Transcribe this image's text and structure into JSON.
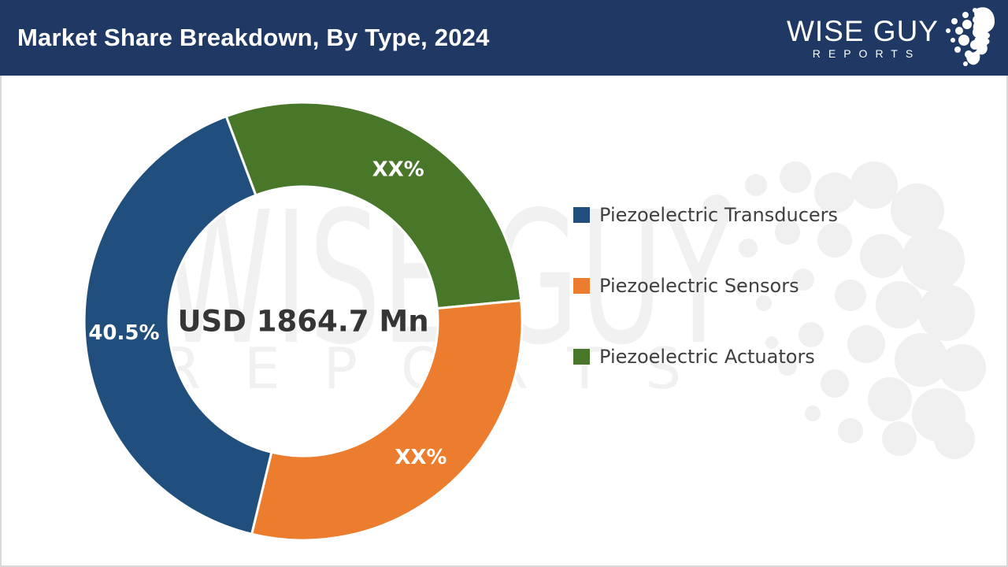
{
  "header": {
    "title": "Market Share Breakdown, By Type, 2024",
    "bg_color": "#1F3864",
    "logo": {
      "line1": "WISE GUY",
      "line2": "REPORTS"
    }
  },
  "watermark": {
    "line1": "WISE GUY",
    "line2": "REPORTS"
  },
  "chart_data": {
    "type": "pie",
    "donut": true,
    "title": "Market Share Breakdown, By Type, 2024",
    "center_label": "USD 1864.7 Mn",
    "start_angle_deg": -20.6,
    "legend_position": "right",
    "segments": [
      {
        "name": "Piezoelectric Actuators",
        "value_pct": 29.2,
        "label": "XX%",
        "color": "#48772A"
      },
      {
        "name": "Piezoelectric Sensors",
        "value_pct": 30.3,
        "label": "XX%",
        "color": "#EC7D2F"
      },
      {
        "name": "Piezoelectric Transducers",
        "value_pct": 40.5,
        "label": "40.5%",
        "color": "#204F7D"
      }
    ],
    "legend": [
      {
        "label": "Piezoelectric Transducers",
        "color": "#204F7D"
      },
      {
        "label": "Piezoelectric Sensors",
        "color": "#EC7D2F"
      },
      {
        "label": "Piezoelectric Actuators",
        "color": "#48772A"
      }
    ]
  }
}
